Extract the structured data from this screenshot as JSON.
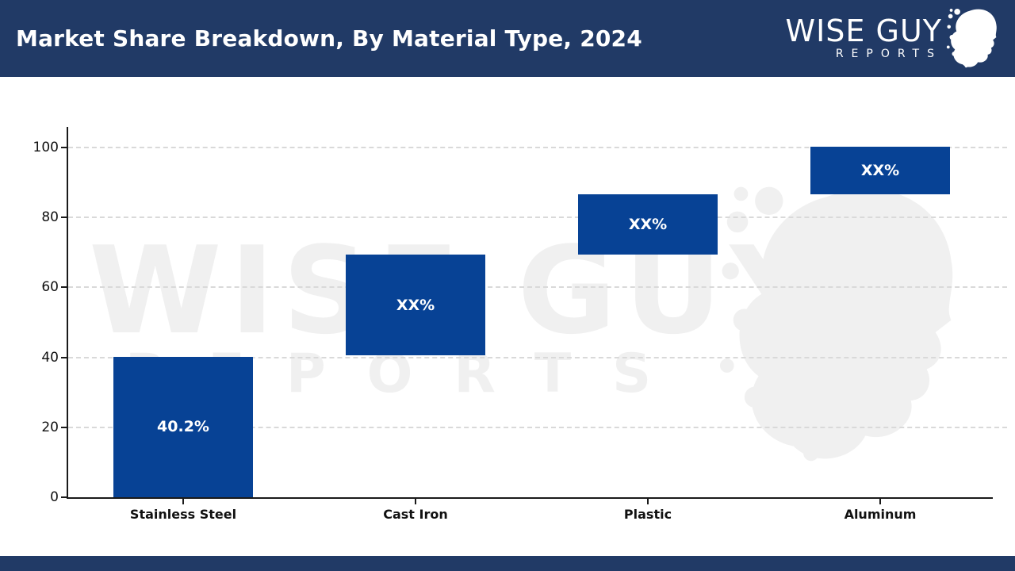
{
  "header": {
    "title": "Market Share Breakdown, By Material Type, 2024",
    "brand": {
      "name": "WISE GUY",
      "subtitle": "REPORTS"
    }
  },
  "watermark": {
    "line1": "WISE GUY",
    "line2": "REPORTS"
  },
  "footer": {},
  "colors": {
    "header_bg": "#213A66",
    "bar": "#074295",
    "grid": "#D9D9D9",
    "axis": "#1A1A1A",
    "watermark": "#F0F0F0"
  },
  "chart_data": {
    "type": "bar",
    "subtype": "waterfall",
    "title": "Market Share Breakdown, By Material Type, 2024",
    "xlabel": "",
    "ylabel": "",
    "categories": [
      "Stainless Steel",
      "Cast Iron",
      "Plastic",
      "Aluminum"
    ],
    "segments": [
      {
        "category": "Stainless Steel",
        "label": "40.2%",
        "from": 0,
        "to": 40.2
      },
      {
        "category": "Cast Iron",
        "label": "XX%",
        "from": 40.6,
        "to": 69.3
      },
      {
        "category": "Plastic",
        "label": "XX%",
        "from": 69.4,
        "to": 86.6
      },
      {
        "category": "Aluminum",
        "label": "XX%",
        "from": 86.6,
        "to": 100.3
      }
    ],
    "yticks": [
      0,
      20,
      40,
      60,
      80,
      100
    ],
    "ylim": [
      0,
      106
    ],
    "grid": "dashed-horizontal-light",
    "legend": "none",
    "bar_color": "#074295",
    "label_color_inside_bars": "#ffffff"
  }
}
